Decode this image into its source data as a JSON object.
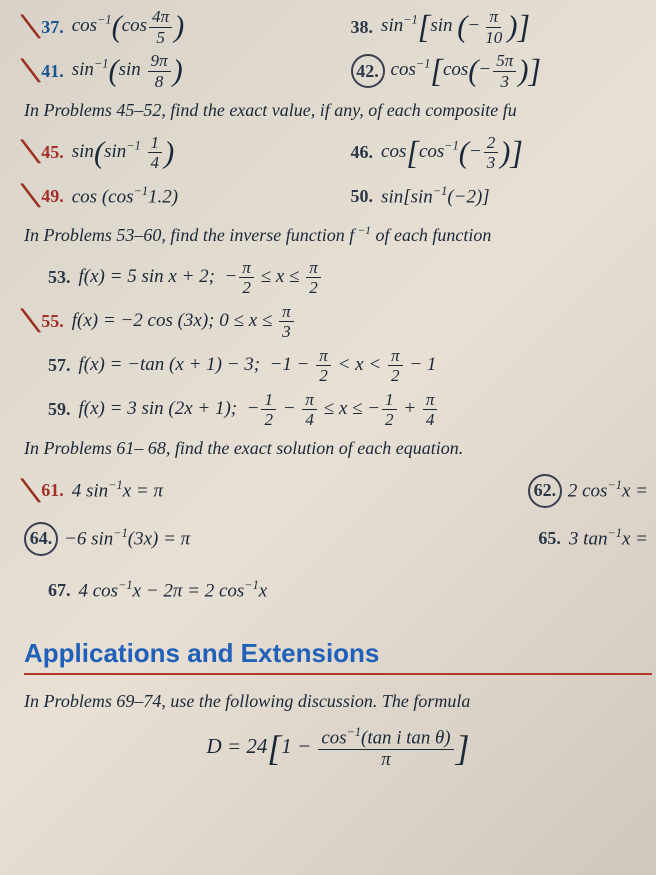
{
  "problems": {
    "p37": {
      "num": "37.",
      "expr_html": "cos<span class='sup'>−1</span><span class='bigparen'>(</span>cos<span class='frac'><span class='num'>4π</span><span class='den'>5</span></span><span class='bigparen'>)</span>"
    },
    "p38": {
      "num": "38.",
      "expr_html": "sin<span class='sup'>−1</span><span class='bigbrack'>[</span>sin <span class='bigparen'>(</span>−<span class='frac'><span class='num'>π</span><span class='den'>10</span></span><span class='bigparen'>)</span><span class='bigbrack'>]</span>"
    },
    "p41": {
      "num": "41.",
      "expr_html": "sin<span class='sup'>−1</span><span class='bigparen'>(</span>sin <span class='frac'><span class='num'>9π</span><span class='den'>8</span></span><span class='bigparen'>)</span>"
    },
    "p42": {
      "num": "42.",
      "expr_html": "cos<span class='sup'>−1</span><span class='bigbrack'>[</span>cos<span class='bigparen'>(</span>−<span class='frac'><span class='num'>5π</span><span class='den'>3</span></span><span class='bigparen'>)</span><span class='bigbrack'>]</span>"
    },
    "p45": {
      "num": "45.",
      "expr_html": "sin<span class='bigparen'>(</span>sin<span class='sup'>−1</span> <span class='frac'><span class='num'>1</span><span class='den'>4</span></span><span class='bigparen'>)</span>"
    },
    "p46": {
      "num": "46.",
      "expr_html": "cos<span class='bigbrack'>[</span>cos<span class='sup'>−1</span><span class='bigparen'>(</span>−<span class='frac'><span class='num'>2</span><span class='den'>3</span></span><span class='bigparen'>)</span><span class='bigbrack'>]</span>"
    },
    "p49": {
      "num": "49.",
      "expr_html": "cos (cos<span class='sup'>−1</span>1.2)"
    },
    "p50": {
      "num": "50.",
      "expr_html": "sin[sin<span class='sup'>−1</span>(−2)]"
    },
    "p53": {
      "num": "53.",
      "expr_html": "<i>f</i>(<i>x</i>) = 5 sin <i>x</i> + 2;&nbsp; −<span class='frac'><span class='num'>π</span><span class='den'>2</span></span> ≤ <i>x</i> ≤ <span class='frac'><span class='num'>π</span><span class='den'>2</span></span>"
    },
    "p55": {
      "num": "55.",
      "expr_html": "<i>f</i>(<i>x</i>) = −2 cos (3<i>x</i>); 0 ≤ <i>x</i> ≤ <span class='frac'><span class='num'>π</span><span class='den'>3</span></span>"
    },
    "p57": {
      "num": "57.",
      "expr_html": "<i>f</i>(<i>x</i>) = −tan (<i>x</i> + 1) − 3;&nbsp; −1 − <span class='frac'><span class='num'>π</span><span class='den'>2</span></span> &lt; <i>x</i> &lt; <span class='frac'><span class='num'>π</span><span class='den'>2</span></span> − 1"
    },
    "p59": {
      "num": "59.",
      "expr_html": "<i>f</i>(<i>x</i>) = 3 sin (2<i>x</i> + 1);&nbsp; −<span class='frac'><span class='num'>1</span><span class='den'>2</span></span> − <span class='frac'><span class='num'>π</span><span class='den'>4</span></span> ≤ <i>x</i> ≤ −<span class='frac'><span class='num'>1</span><span class='den'>2</span></span> + <span class='frac'><span class='num'>π</span><span class='den'>4</span></span>"
    },
    "p61": {
      "num": "61.",
      "expr_html": "4 sin<span class='sup'>−1</span><i>x</i> = π"
    },
    "p62": {
      "num": "62.",
      "expr_html": "2 cos<span class='sup'>−1</span><i>x</i> ="
    },
    "p64": {
      "num": "64.",
      "expr_html": "−6 sin<span class='sup'>−1</span>(3<i>x</i>) = π"
    },
    "p65": {
      "num": "65.",
      "expr_html": "3 tan<span class='sup'>−1</span><i>x</i> ="
    },
    "p67": {
      "num": "67.",
      "expr_html": "4 cos<span class='sup'>−1</span><i>x</i> − 2π = 2 cos<span class='sup'>−1</span><i>x</i>"
    }
  },
  "instructions": {
    "i45": "In Problems 45–52, find the exact value, if any, of each composite fu",
    "i53_html": "In Problems 53–60, find the inverse function f<span class='sup'>&nbsp;−1</span> of each function",
    "i61": "In Problems 61– 68, find the exact solution of each equation.",
    "i69": "In Problems 69–74, use the following discussion. The formula"
  },
  "section": {
    "title": "Applications and Extensions"
  },
  "formula": {
    "html": "<i>D</i> = 24<span class='bigbrack'>[</span>1 − <span class='frac'><span class='num'>cos<span class=\"sup\">−1</span>(tan <i>i</i> tan θ)</span><span class='den'>π</span></span><span class='bigbrack'>]</span>"
  },
  "colors": {
    "problem_blue": "#1a5490",
    "problem_red": "#a03028",
    "header_blue": "#2060b8",
    "underline_red": "#b03830",
    "text": "#1a2838",
    "tick": "#9a3020",
    "bg_light": "#e8e0d4",
    "bg_dark": "#d0c8bc"
  },
  "typography": {
    "body_font": "Times New Roman",
    "header_font": "Arial",
    "body_size_pt": 14,
    "header_size_pt": 20
  }
}
